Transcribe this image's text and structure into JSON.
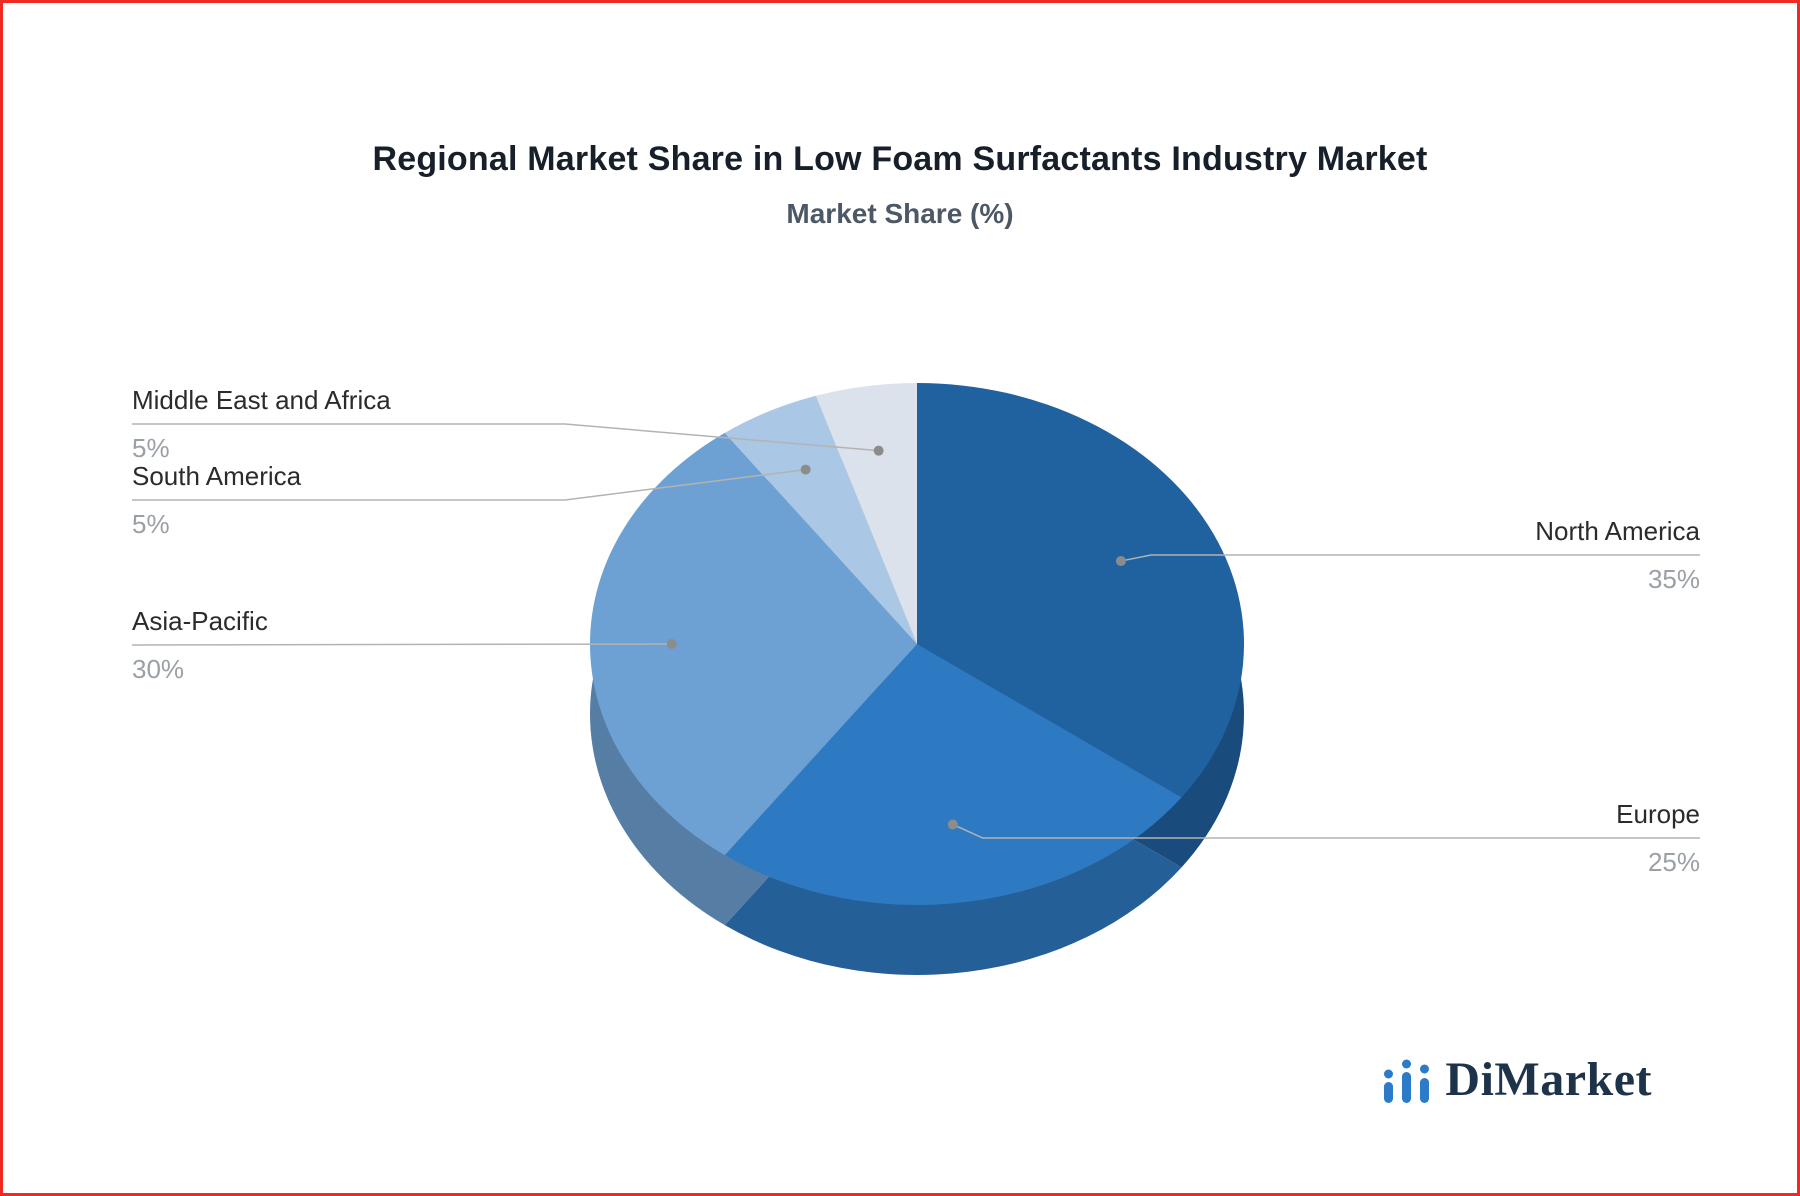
{
  "page": {
    "title": "Regional Market Share in Low Foam Surfactants Industry Market",
    "subtitle": "Market Share (%)"
  },
  "chart_data": {
    "type": "pie",
    "style": "3d-pie",
    "title": "Regional Market Share in Low Foam Surfactants Industry Market",
    "subtitle": "Market Share (%)",
    "unit": "%",
    "start_angle_deg": 0,
    "direction": "clockwise",
    "legend_position": "none",
    "slices": [
      {
        "name": "North America",
        "value": 35,
        "label": "35%",
        "color": "#20619f"
      },
      {
        "name": "Europe",
        "value": 25,
        "label": "25%",
        "color": "#2e7ac2"
      },
      {
        "name": "Asia-Pacific",
        "value": 30,
        "label": "30%",
        "color": "#6ea1d3"
      },
      {
        "name": "South America",
        "value": 5,
        "label": "5%",
        "color": "#aac8e6"
      },
      {
        "name": "Middle East and Africa",
        "value": 5,
        "label": "5%",
        "color": "#dbe2eb"
      }
    ]
  },
  "branding": {
    "logo_text": "DiMarket",
    "logo_icon": "bar-chart-icon",
    "logo_text_color": "#1d3349",
    "logo_icon_color": "#2b7bc9"
  }
}
